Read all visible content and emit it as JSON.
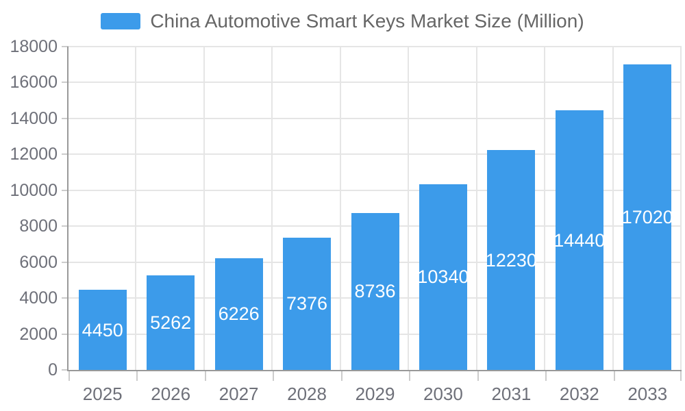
{
  "chart_data": {
    "type": "bar",
    "title": "China Automotive Smart Keys Market Size (Million)",
    "series_name": "China Automotive Smart Keys Market Size (Million)",
    "categories": [
      "2025",
      "2026",
      "2027",
      "2028",
      "2029",
      "2030",
      "2031",
      "2032",
      "2033"
    ],
    "values": [
      4450,
      5262,
      6226,
      7376,
      8736,
      10340,
      12230,
      14440,
      17020
    ],
    "xlabel": "",
    "ylabel": "",
    "ylim": [
      0,
      18000
    ],
    "ytick_step": 2000,
    "grid": true,
    "legend_position": "top",
    "colors": {
      "bar": "#3C9BEA",
      "bar_label": "#FFFFFF",
      "axis_label": "#6E7079",
      "legend_text": "#666666",
      "axis_line": "#999999",
      "tick": "#CCCCCC",
      "gridline": "#E5E5E5",
      "background": "#FFFFFF"
    }
  }
}
